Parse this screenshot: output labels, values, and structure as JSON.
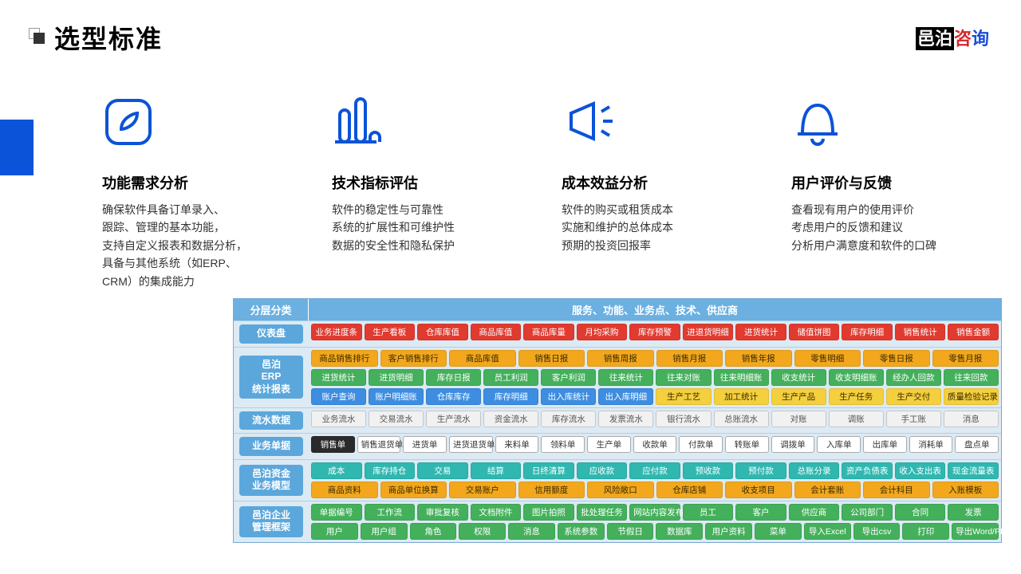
{
  "header": {
    "title": "选型标准",
    "logo": {
      "part1": "邑泊",
      "part2": "咨",
      "part3": "询"
    }
  },
  "columns": [
    {
      "icon": "leaf-rounded-square-icon",
      "title": "功能需求分析",
      "desc": "确保软件具备订单录入、\n跟踪、管理的基本功能，\n支持自定义报表和数据分析，\n具备与其他系统（如ERP、\nCRM）的集成能力"
    },
    {
      "icon": "bar-chart-icon",
      "title": "技术指标评估",
      "desc": "软件的稳定性与可靠性\n系统的扩展性和可维护性\n数据的安全性和隐私保护"
    },
    {
      "icon": "megaphone-icon",
      "title": "成本效益分析",
      "desc": "软件的购买或租赁成本\n实施和维护的总体成本\n预期的投资回报率"
    },
    {
      "icon": "bell-icon",
      "title": "用户评价与反馈",
      "desc": "查看现有用户的使用评价\n考虑用户的反馈和建议\n分析用户满意度和软件的口碑"
    }
  ],
  "diagram": {
    "header": {
      "left": "分层分类",
      "right": "服务、功能、业务点、技术、供应商"
    },
    "rows": [
      {
        "left": "仪表盘",
        "lines": [
          [
            {
              "t": "业务进度条",
              "c": "c-red"
            },
            {
              "t": "生产看板",
              "c": "c-red"
            },
            {
              "t": "仓库库值",
              "c": "c-red"
            },
            {
              "t": "商品库值",
              "c": "c-red"
            },
            {
              "t": "商品库量",
              "c": "c-red"
            },
            {
              "t": "月均采购",
              "c": "c-red"
            },
            {
              "t": "库存预警",
              "c": "c-red"
            },
            {
              "t": "进退货明细",
              "c": "c-red"
            },
            {
              "t": "进货统计",
              "c": "c-red"
            },
            {
              "t": "储值饼图",
              "c": "c-red"
            },
            {
              "t": "库存明细",
              "c": "c-red"
            },
            {
              "t": "销售统计",
              "c": "c-red"
            },
            {
              "t": "销售金额",
              "c": "c-red"
            }
          ]
        ]
      },
      {
        "left": "邑泊\nERP\n统计报表",
        "lines": [
          [
            {
              "t": "商品销售排行",
              "c": "c-orange"
            },
            {
              "t": "客户销售排行",
              "c": "c-orange"
            },
            {
              "t": "商品库值",
              "c": "c-orange"
            },
            {
              "t": "销售日报",
              "c": "c-orange"
            },
            {
              "t": "销售周报",
              "c": "c-orange"
            },
            {
              "t": "销售月报",
              "c": "c-orange"
            },
            {
              "t": "销售年报",
              "c": "c-orange"
            },
            {
              "t": "零售明细",
              "c": "c-orange"
            },
            {
              "t": "零售日报",
              "c": "c-orange"
            },
            {
              "t": "零售月报",
              "c": "c-orange"
            }
          ],
          [
            {
              "t": "进货统计",
              "c": "c-green"
            },
            {
              "t": "进货明细",
              "c": "c-green"
            },
            {
              "t": "库存日报",
              "c": "c-green"
            },
            {
              "t": "员工利润",
              "c": "c-green"
            },
            {
              "t": "客户利润",
              "c": "c-green"
            },
            {
              "t": "往来统计",
              "c": "c-green"
            },
            {
              "t": "往来对账",
              "c": "c-green"
            },
            {
              "t": "往来明细账",
              "c": "c-green"
            },
            {
              "t": "收支统计",
              "c": "c-green"
            },
            {
              "t": "收支明细账",
              "c": "c-green"
            },
            {
              "t": "经办人回款",
              "c": "c-green"
            },
            {
              "t": "往来回款",
              "c": "c-green"
            }
          ],
          [
            {
              "t": "账户查询",
              "c": "c-blue"
            },
            {
              "t": "账户明细账",
              "c": "c-blue"
            },
            {
              "t": "仓库库存",
              "c": "c-blue"
            },
            {
              "t": "库存明细",
              "c": "c-blue"
            },
            {
              "t": "出入库统计",
              "c": "c-blue"
            },
            {
              "t": "出入库明细",
              "c": "c-blue"
            },
            {
              "t": "生产工艺",
              "c": "c-yellow"
            },
            {
              "t": "加工统计",
              "c": "c-yellow"
            },
            {
              "t": "生产产品",
              "c": "c-yellow"
            },
            {
              "t": "生产任务",
              "c": "c-yellow"
            },
            {
              "t": "生产交付",
              "c": "c-yellow"
            },
            {
              "t": "质量检验记录",
              "c": "c-yellow"
            }
          ]
        ]
      },
      {
        "left": "流水数据",
        "lines": [
          [
            {
              "t": "业务流水",
              "c": "c-gray"
            },
            {
              "t": "交易流水",
              "c": "c-gray"
            },
            {
              "t": "生产流水",
              "c": "c-gray"
            },
            {
              "t": "资金流水",
              "c": "c-gray"
            },
            {
              "t": "库存流水",
              "c": "c-gray"
            },
            {
              "t": "发票流水",
              "c": "c-gray"
            },
            {
              "t": "银行流水",
              "c": "c-gray"
            },
            {
              "t": "总账流水",
              "c": "c-gray"
            },
            {
              "t": "对账",
              "c": "c-gray"
            },
            {
              "t": "调账",
              "c": "c-gray"
            },
            {
              "t": "手工账",
              "c": "c-gray"
            },
            {
              "t": "消息",
              "c": "c-gray"
            }
          ]
        ]
      },
      {
        "left": "业务单据",
        "lines": [
          [
            {
              "t": "销售单",
              "c": "c-black"
            },
            {
              "t": "销售退货单",
              "c": "c-white"
            },
            {
              "t": "进货单",
              "c": "c-white"
            },
            {
              "t": "进货退货单",
              "c": "c-white"
            },
            {
              "t": "来料单",
              "c": "c-white"
            },
            {
              "t": "领料单",
              "c": "c-white"
            },
            {
              "t": "生产单",
              "c": "c-white"
            },
            {
              "t": "收款单",
              "c": "c-white"
            },
            {
              "t": "付款单",
              "c": "c-white"
            },
            {
              "t": "转账单",
              "c": "c-white"
            },
            {
              "t": "调拨单",
              "c": "c-white"
            },
            {
              "t": "入库单",
              "c": "c-white"
            },
            {
              "t": "出库单",
              "c": "c-white"
            },
            {
              "t": "消耗单",
              "c": "c-white"
            },
            {
              "t": "盘点单",
              "c": "c-white"
            }
          ]
        ]
      },
      {
        "left": "邑泊资金\n业务模型",
        "lines": [
          [
            {
              "t": "成本",
              "c": "c-teal"
            },
            {
              "t": "库存持仓",
              "c": "c-teal"
            },
            {
              "t": "交易",
              "c": "c-teal"
            },
            {
              "t": "结算",
              "c": "c-teal"
            },
            {
              "t": "日终清算",
              "c": "c-teal"
            },
            {
              "t": "应收款",
              "c": "c-teal"
            },
            {
              "t": "应付款",
              "c": "c-teal"
            },
            {
              "t": "预收款",
              "c": "c-teal"
            },
            {
              "t": "预付款",
              "c": "c-teal"
            },
            {
              "t": "总账分录",
              "c": "c-teal"
            },
            {
              "t": "资产负债表",
              "c": "c-teal"
            },
            {
              "t": "收入支出表",
              "c": "c-teal"
            },
            {
              "t": "现金流量表",
              "c": "c-teal"
            }
          ],
          [
            {
              "t": "商品资料",
              "c": "c-orange"
            },
            {
              "t": "商品单位换算",
              "c": "c-orange"
            },
            {
              "t": "交易账户",
              "c": "c-orange"
            },
            {
              "t": "信用额度",
              "c": "c-orange"
            },
            {
              "t": "风险敞口",
              "c": "c-orange"
            },
            {
              "t": "仓库店铺",
              "c": "c-orange"
            },
            {
              "t": "收支项目",
              "c": "c-orange"
            },
            {
              "t": "会计套账",
              "c": "c-orange"
            },
            {
              "t": "会计科目",
              "c": "c-orange"
            },
            {
              "t": "入账模板",
              "c": "c-orange"
            }
          ]
        ]
      },
      {
        "left": "邑泊企业\n管理框架",
        "lines": [
          [
            {
              "t": "单据编号",
              "c": "c-green"
            },
            {
              "t": "工作流",
              "c": "c-green"
            },
            {
              "t": "审批复核",
              "c": "c-green"
            },
            {
              "t": "文档附件",
              "c": "c-green"
            },
            {
              "t": "图片拍照",
              "c": "c-green"
            },
            {
              "t": "批处理任务",
              "c": "c-green"
            },
            {
              "t": "网站内容发布",
              "c": "c-green"
            },
            {
              "t": "员工",
              "c": "c-green"
            },
            {
              "t": "客户",
              "c": "c-green"
            },
            {
              "t": "供应商",
              "c": "c-green"
            },
            {
              "t": "公司部门",
              "c": "c-green"
            },
            {
              "t": "合同",
              "c": "c-green"
            },
            {
              "t": "发票",
              "c": "c-green"
            }
          ],
          [
            {
              "t": "用户",
              "c": "c-green"
            },
            {
              "t": "用户组",
              "c": "c-green"
            },
            {
              "t": "角色",
              "c": "c-green"
            },
            {
              "t": "权限",
              "c": "c-green"
            },
            {
              "t": "消息",
              "c": "c-green"
            },
            {
              "t": "系统参数",
              "c": "c-green"
            },
            {
              "t": "节假日",
              "c": "c-green"
            },
            {
              "t": "数据库",
              "c": "c-green"
            },
            {
              "t": "用户资料",
              "c": "c-green"
            },
            {
              "t": "菜单",
              "c": "c-green"
            },
            {
              "t": "导入Excel",
              "c": "c-green"
            },
            {
              "t": "导出csv",
              "c": "c-green"
            },
            {
              "t": "打印",
              "c": "c-green"
            },
            {
              "t": "导出Word/PDF",
              "c": "c-green"
            }
          ]
        ]
      }
    ]
  }
}
